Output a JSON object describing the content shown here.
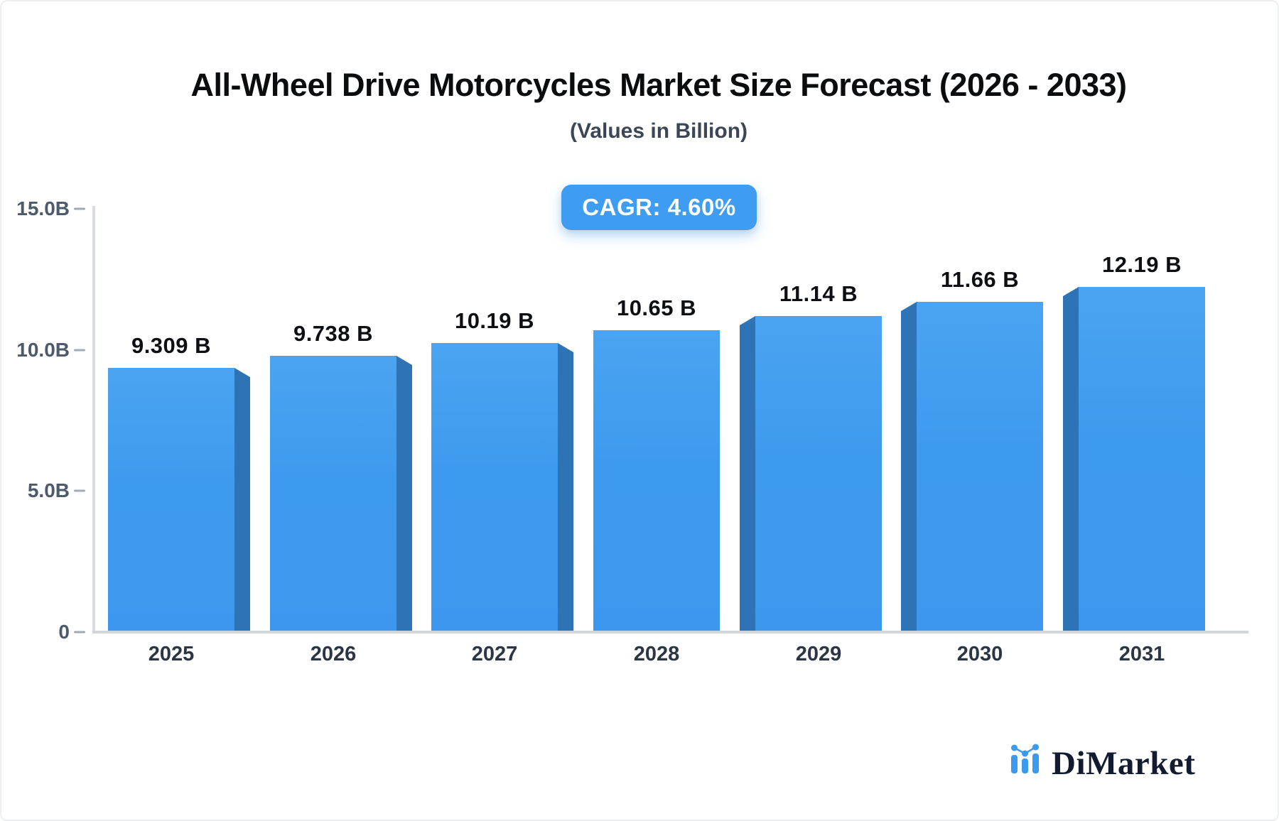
{
  "header": {
    "title": "All-Wheel Drive Motorcycles Market Size Forecast (2026 - 2033)",
    "subtitle": "(Values in Billion)"
  },
  "badge": {
    "label": "CAGR: 4.60%"
  },
  "chart_data": {
    "type": "bar",
    "title": "All-Wheel Drive Motorcycles Market Size Forecast (2026 - 2033)",
    "subtitle": "(Values in Billion)",
    "cagr": "4.60%",
    "categories": [
      "2025",
      "2026",
      "2027",
      "2028",
      "2029",
      "2030",
      "2031"
    ],
    "values": [
      9.309,
      9.738,
      10.19,
      10.65,
      11.14,
      11.66,
      12.19
    ],
    "value_labels": [
      "9.309 B",
      "9.738 B",
      "10.19 B",
      "10.65 B",
      "11.14 B",
      "11.66 B",
      "12.19 B"
    ],
    "xlabel": "",
    "ylabel": "Values in Billion",
    "ylim": [
      0,
      15
    ],
    "y_ticks": [
      {
        "label": "15.0B",
        "value": 15
      },
      {
        "label": "10.0B",
        "value": 10
      },
      {
        "label": "5.0B",
        "value": 5
      },
      {
        "label": "0",
        "value": 0
      }
    ],
    "grid": false,
    "legend": false
  },
  "logo": {
    "brand": "DiMarket"
  },
  "colors": {
    "bar_face": "#3e9aef",
    "bar_side": "#2d73b6",
    "badge_bg": "#3f9cf3",
    "axis_line": "#d5d8dd",
    "tick_label": "#4d5a6b",
    "category_label": "#2b3544",
    "value_label": "#0d0f12",
    "brand_navy": "#131b30",
    "accent_blue": "#3b9af0"
  }
}
